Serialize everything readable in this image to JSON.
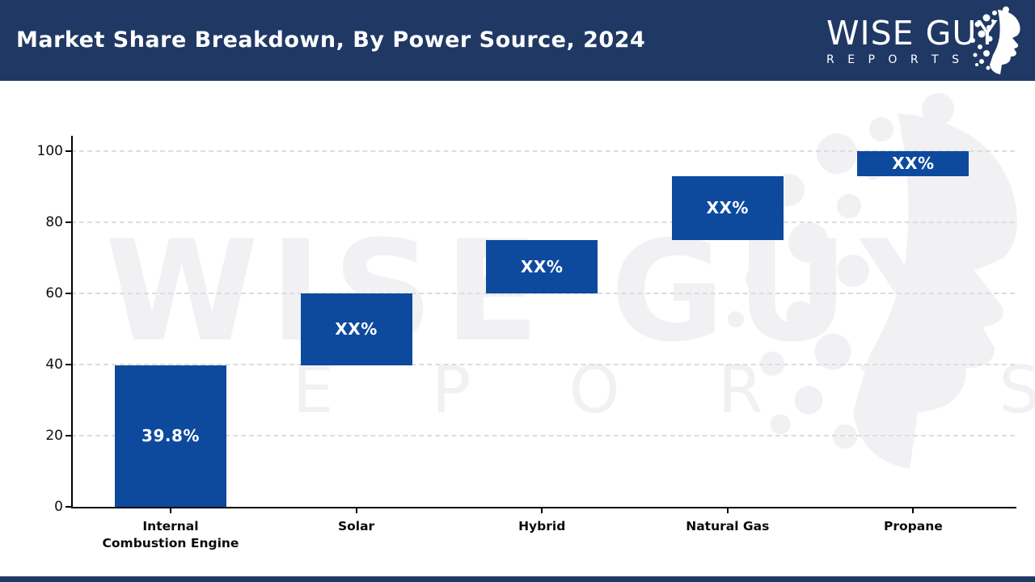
{
  "header": {
    "title": "Market Share Breakdown, By Power Source, 2024",
    "logo": {
      "wordmark": "WISE GUY",
      "subtext": "R E P O R T S"
    }
  },
  "watermark": {
    "line1": "WISE GUY",
    "line2": "R E P O R T S"
  },
  "colors": {
    "header_bg": "#203864",
    "bar": "#0d4a9e",
    "bar_label": "#ffffff",
    "grid": "#dcdcdc",
    "axis": "#000000",
    "watermark": "#f1f1f4"
  },
  "chart_data": {
    "type": "bar",
    "subtype": "waterfall",
    "title": "Market Share Breakdown, By Power Source, 2024",
    "categories": [
      "Internal Combustion Engine",
      "Solar",
      "Hybrid",
      "Natural Gas",
      "Propane"
    ],
    "bars": [
      {
        "category": "Internal Combustion Engine",
        "start": 0,
        "end": 39.8,
        "label": "39.8%"
      },
      {
        "category": "Solar",
        "start": 39.8,
        "end": 60,
        "label": "XX%"
      },
      {
        "category": "Hybrid",
        "start": 60,
        "end": 75,
        "label": "XX%"
      },
      {
        "category": "Natural Gas",
        "start": 75,
        "end": 93,
        "label": "XX%"
      },
      {
        "category": "Propane",
        "start": 93,
        "end": 100,
        "label": "XX%"
      }
    ],
    "y_ticks": [
      0,
      20,
      40,
      60,
      80,
      100
    ],
    "ylim": [
      0,
      100
    ],
    "xlabel": "",
    "ylabel": "",
    "grid": "horizontal-dashed",
    "legend": "none"
  }
}
